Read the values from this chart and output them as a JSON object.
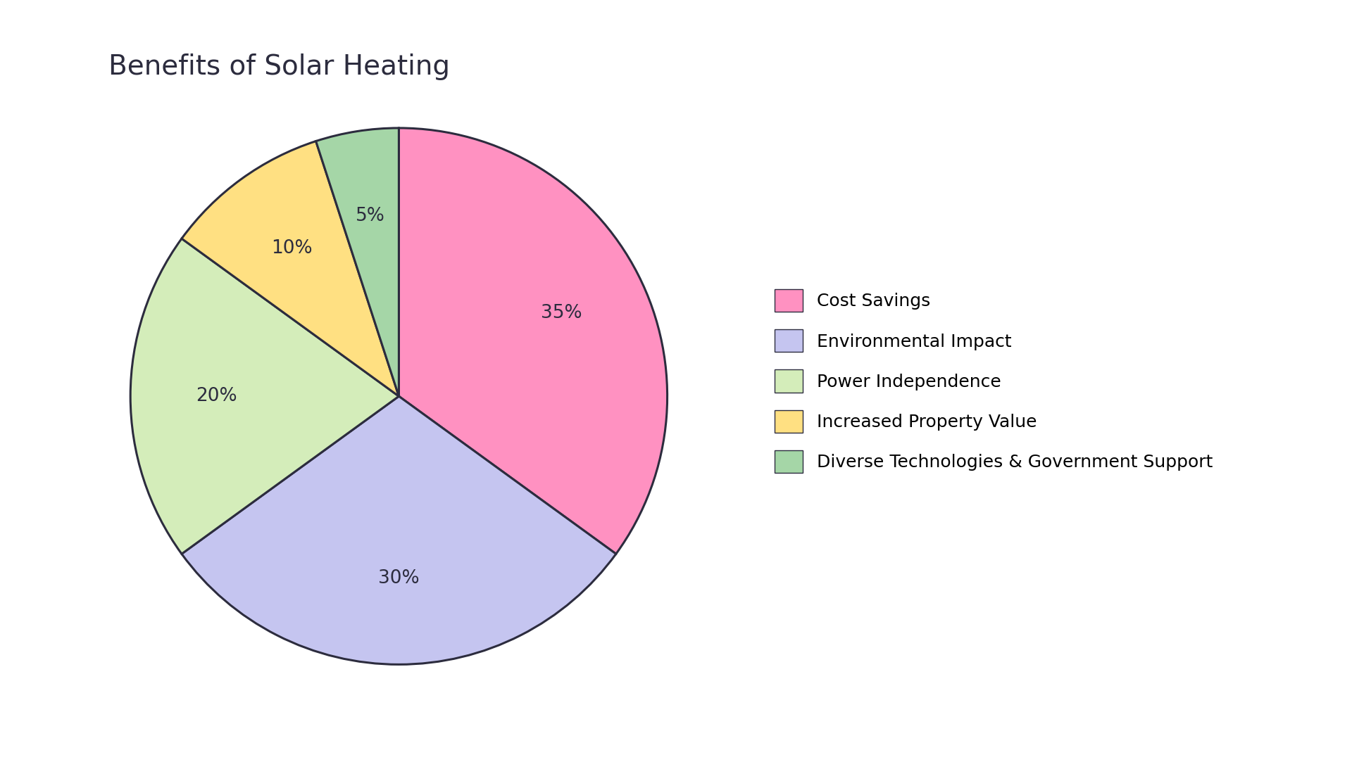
{
  "title": "Benefits of Solar Heating",
  "slices": [
    {
      "label": "Cost Savings",
      "value": 35,
      "color": "#FF91C1"
    },
    {
      "label": "Environmental Impact",
      "value": 30,
      "color": "#C5C5F0"
    },
    {
      "label": "Power Independence",
      "value": 20,
      "color": "#D4EDBA"
    },
    {
      "label": "Increased Property Value",
      "value": 10,
      "color": "#FFE082"
    },
    {
      "label": "Diverse Technologies & Government Support",
      "value": 5,
      "color": "#A5D6A7"
    }
  ],
  "legend_colors": [
    "#FF91C1",
    "#C5C5F0",
    "#D4EDBA",
    "#FFE082",
    "#A5D6A7"
  ],
  "legend_labels": [
    "Cost Savings",
    "Environmental Impact",
    "Power Independence",
    "Increased Property Value",
    "Diverse Technologies & Government Support"
  ],
  "background_color": "#FFFFFF",
  "title_fontsize": 28,
  "label_fontsize": 19,
  "legend_fontsize": 18,
  "edge_color": "#2c2c3e",
  "edge_width": 2.2,
  "start_angle": 90
}
